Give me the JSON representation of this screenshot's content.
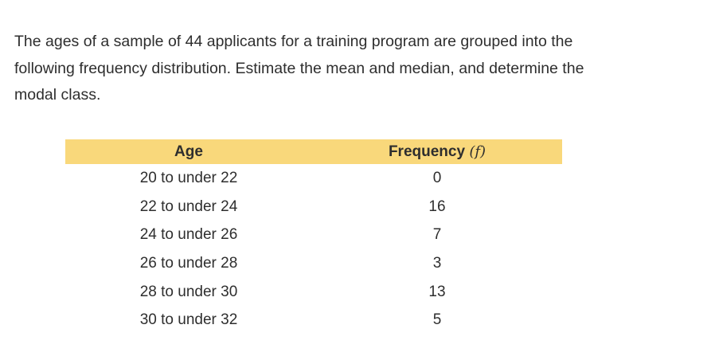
{
  "colors": {
    "header_bg": "#f9d87b",
    "text": "#2e2e2e",
    "background": "#ffffff"
  },
  "problem": {
    "lines": [
      "The ages of a sample of 44 applicants for a training program are grouped into the",
      "following frequency distribution. Estimate the mean and median, and determine the",
      "modal class."
    ]
  },
  "table": {
    "header": {
      "age": "Age",
      "frequency": "Frequency",
      "frequency_var": "(f)"
    },
    "rows": [
      {
        "age": "20 to under 22",
        "f": "0"
      },
      {
        "age": "22 to under 24",
        "f": "16"
      },
      {
        "age": "24 to under 26",
        "f": "7"
      },
      {
        "age": "26 to under 28",
        "f": "3"
      },
      {
        "age": "28 to under 30",
        "f": "13"
      },
      {
        "age": "30 to under 32",
        "f": "5"
      }
    ]
  }
}
